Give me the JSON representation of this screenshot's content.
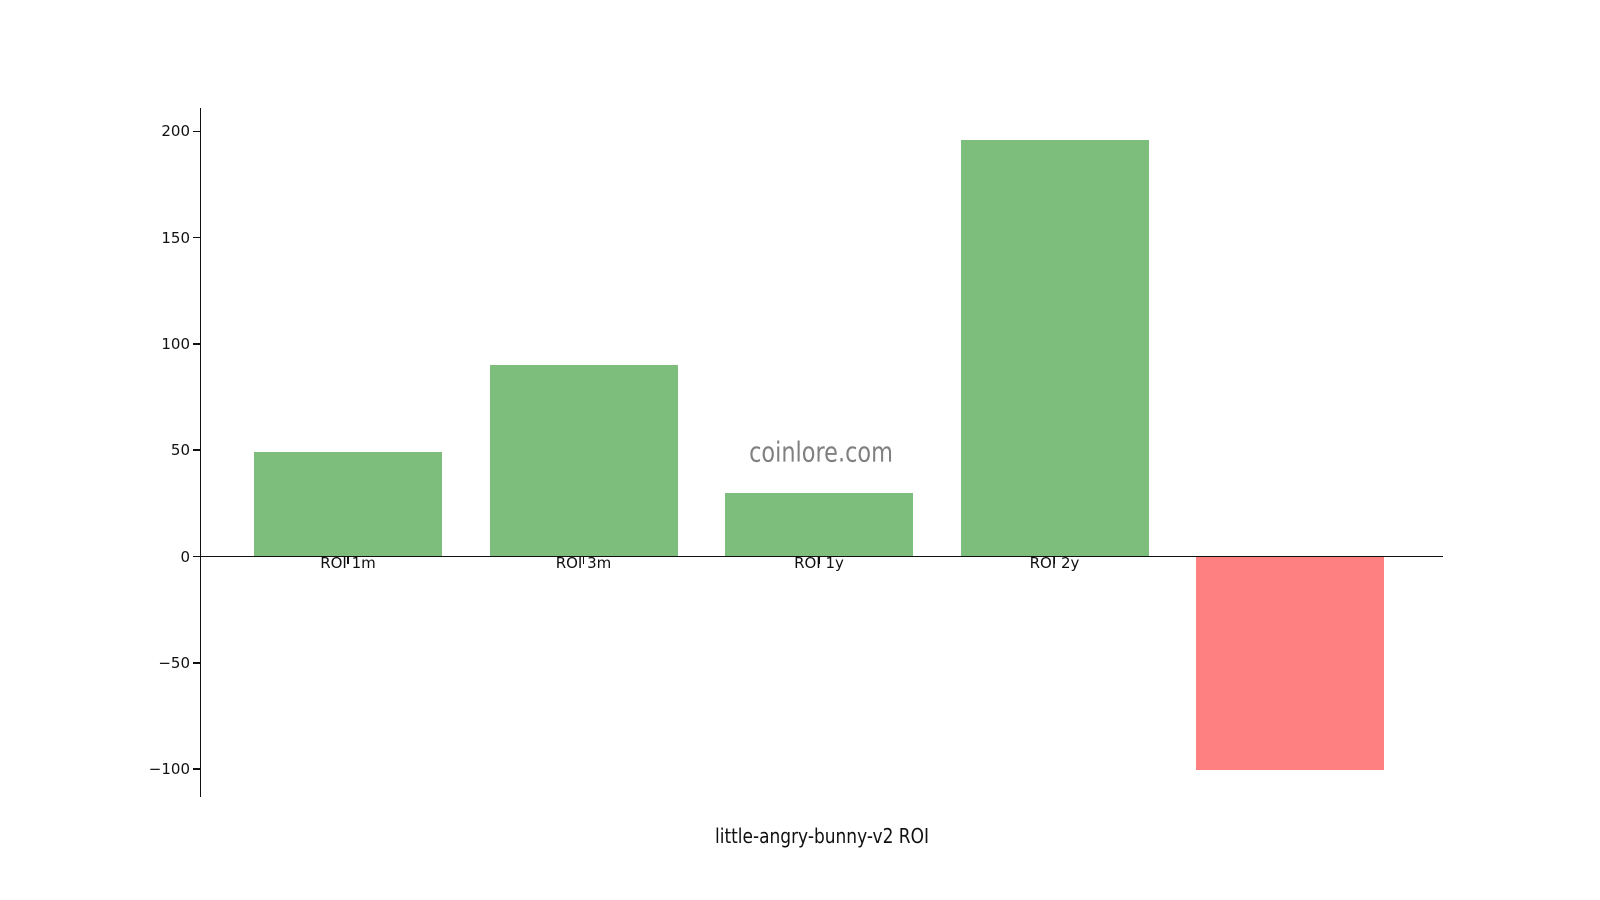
{
  "chart_data": {
    "type": "bar",
    "title": "little-angry-bunny-v2 ROI",
    "watermark": "coinlore.com",
    "categories": [
      "ROI 1m",
      "ROI 3m",
      "ROI 1y",
      "ROI 2y",
      ""
    ],
    "values": [
      49,
      90,
      30,
      196,
      -100
    ],
    "bar_colors": [
      "#7dbe7d",
      "#7dbe7d",
      "#7dbe7d",
      "#7dbe7d",
      "#ff8080"
    ],
    "positive_color": "#7dbe7d",
    "negative_color": "#ff8080",
    "y_ticks": [
      {
        "value": 200,
        "label": "200"
      },
      {
        "value": 150,
        "label": "150"
      },
      {
        "value": 100,
        "label": "100"
      },
      {
        "value": 50,
        "label": "50"
      },
      {
        "value": 0,
        "label": "0"
      },
      {
        "value": -50,
        "label": "−50"
      },
      {
        "value": -100,
        "label": "−100"
      }
    ],
    "ylim": [
      -113,
      211
    ],
    "xlabel": "",
    "ylabel": "",
    "grid": false,
    "legend": false,
    "axis_style": "left-spine-and-zero-line-only",
    "colors": {
      "axis": "#111111",
      "tick_text": "#111111",
      "watermark_text": "#808080",
      "title_text": "#111111",
      "background": "#ffffff"
    }
  }
}
